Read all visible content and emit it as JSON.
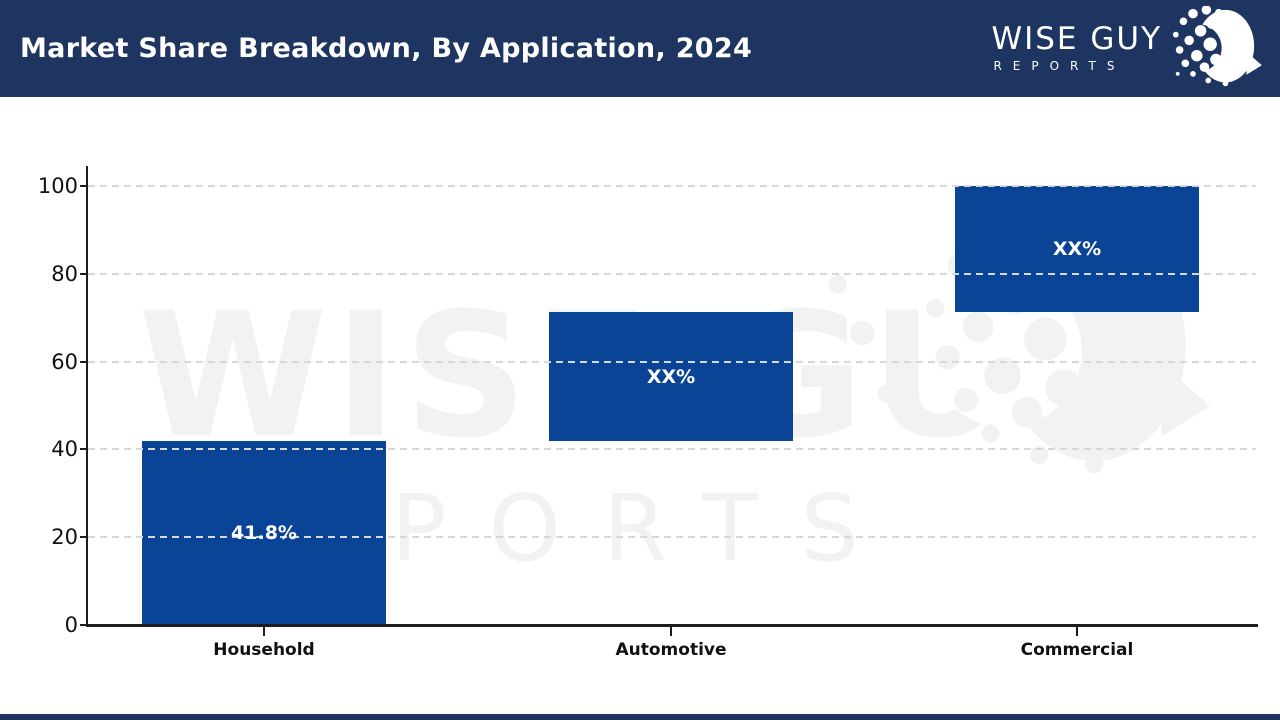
{
  "header": {
    "title": "Market Share Breakdown, By Application, 2024",
    "bg_color": "#1e3461",
    "logo": {
      "wordmark": "WISE GUY",
      "subtext": "REPORTS"
    }
  },
  "watermark": {
    "line1": "WISE GUY",
    "line2": "REPORTS",
    "color": "#f2f2f2"
  },
  "chart_data": {
    "type": "bar",
    "variant": "stacked-waterfall",
    "title": "Market Share Breakdown, By Application, 2024",
    "categories": [
      "Household",
      "Automotive",
      "Commercial"
    ],
    "segments": [
      {
        "category": "Household",
        "start": 0,
        "end": 41.8,
        "label": "41.8%"
      },
      {
        "category": "Automotive",
        "start": 41.8,
        "end": 71.4,
        "label": "XX%"
      },
      {
        "category": "Commercial",
        "start": 71.4,
        "end": 100,
        "label": "XX%"
      }
    ],
    "ylim": [
      0,
      100
    ],
    "yticks": [
      0,
      20,
      40,
      60,
      80,
      100
    ],
    "xlabel": "",
    "ylabel": "",
    "grid": "dashed-horizontal",
    "legend": "none",
    "bar_color": "#0a4496",
    "bar_label_color": "#ffffff",
    "grid_color": "#d7d7d7",
    "axis_color": "#1c1c1c"
  }
}
